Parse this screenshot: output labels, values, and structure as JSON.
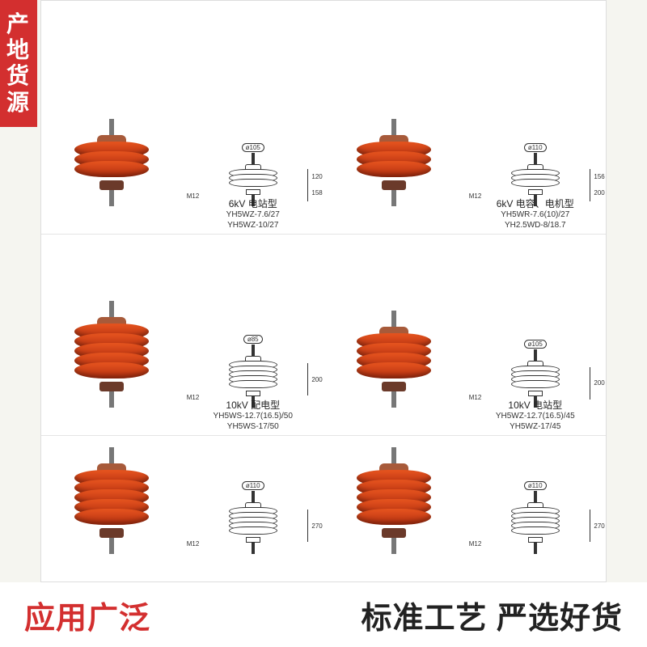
{
  "badges": {
    "top_left": "产地货源",
    "bottom_left": "应用广泛",
    "bottom_right": "标准工艺 严选好货"
  },
  "colors": {
    "badge_bg": "#d32f2f",
    "badge_fg": "#ffffff",
    "arrester_shed_top": "#e8551f",
    "arrester_shed_bottom": "#b12e10",
    "arrester_cap": "#a75a3a",
    "page_bg": "#f5f5f0",
    "frame_bg": "#ffffff",
    "text": "#222222",
    "line": "#333333"
  },
  "rows": [
    {
      "photo": {
        "sheds": 3
      },
      "diagram1": {
        "sheds": 3,
        "dim_top": "ø105",
        "dim_side": [
          "120",
          "158"
        ],
        "m_label": "M12",
        "caption_main": "6kV 电站型",
        "caption_sub": "YH5WZ-7.6/27\nYH5WZ-10/27"
      },
      "photo2": {
        "sheds": 3
      },
      "diagram2": {
        "sheds": 3,
        "dim_top": "ø110",
        "dim_side": [
          "156",
          "200"
        ],
        "m_label": "M12",
        "caption_main": "6kV 电容、电机型",
        "caption_sub": "YH5WR-7.6(10)/27\nYH2.5WD-8/18.7"
      }
    },
    {
      "photo": {
        "sheds": 5
      },
      "diagram1": {
        "sheds": 5,
        "dim_top": "ø85",
        "dim_side": [
          "200"
        ],
        "m_label": "M12",
        "caption_main": "10kV 配电型",
        "caption_sub": "YH5WS-12.7(16.5)/50\nYH5WS-17/50"
      },
      "photo2": {
        "sheds": 4
      },
      "diagram2": {
        "sheds": 4,
        "dim_top": "ø105",
        "dim_side": [
          "200"
        ],
        "m_label": "M12",
        "caption_main": "10kV 电站型",
        "caption_sub": "YH5WZ-12.7(16.5)/45\nYH5WZ-17/45"
      }
    },
    {
      "photo": {
        "sheds": 5
      },
      "diagram1": {
        "sheds": 5,
        "dim_top": "ø110",
        "dim_side": [
          "270"
        ],
        "m_label": "M12",
        "caption_main": "",
        "caption_sub": ""
      },
      "photo2": {
        "sheds": 5
      },
      "diagram2": {
        "sheds": 5,
        "dim_top": "ø110",
        "dim_side": [
          "270"
        ],
        "m_label": "M12",
        "caption_main": "",
        "caption_sub": ""
      }
    }
  ]
}
